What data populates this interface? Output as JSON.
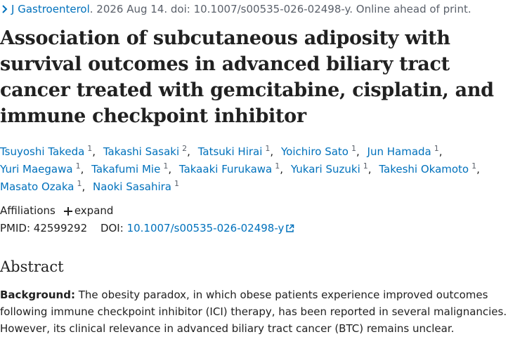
{
  "citation": {
    "journal": "J Gastroenterol",
    "details": ". 2026 Aug 14. doi: 10.1007/s00535-026-02498-y. Online ahead of print."
  },
  "title": "Association of subcutaneous adiposity with survival outcomes in advanced biliary tract cancer treated with gemcitabine, cisplatin, and immune checkpoint inhibitor",
  "authors": {
    "separator": ",",
    "list": [
      {
        "name": "Tsuyoshi Takeda",
        "aff": "1"
      },
      {
        "name": "Takashi Sasaki",
        "aff": "2"
      },
      {
        "name": "Tatsuki Hirai",
        "aff": "1"
      },
      {
        "name": "Yoichiro Sato",
        "aff": "1"
      },
      {
        "name": "Jun Hamada",
        "aff": "1"
      },
      {
        "name": "Yuri Maegawa",
        "aff": "1"
      },
      {
        "name": "Takafumi Mie",
        "aff": "1"
      },
      {
        "name": "Takaaki Furukawa",
        "aff": "1"
      },
      {
        "name": "Yukari Suzuki",
        "aff": "1"
      },
      {
        "name": "Takeshi Okamoto",
        "aff": "1"
      },
      {
        "name": "Masato Ozaka",
        "aff": "1"
      },
      {
        "name": "Naoki Sasahira",
        "aff": "1"
      }
    ]
  },
  "affiliations": {
    "label": "Affiliations",
    "toggle": "expand"
  },
  "ids": {
    "pmid_label": "PMID:",
    "pmid": "42599292",
    "doi_label": "DOI:",
    "doi": "10.1007/s00535-026-02498-y"
  },
  "abstract": {
    "heading": "Abstract",
    "background_label": "Background:",
    "background": "The obesity paradox, in which obese patients experience improved outcomes following immune checkpoint inhibitor (ICI) therapy, has been reported in several malignancies. However, its clinical relevance in advanced biliary tract cancer (BTC) remains unclear."
  }
}
